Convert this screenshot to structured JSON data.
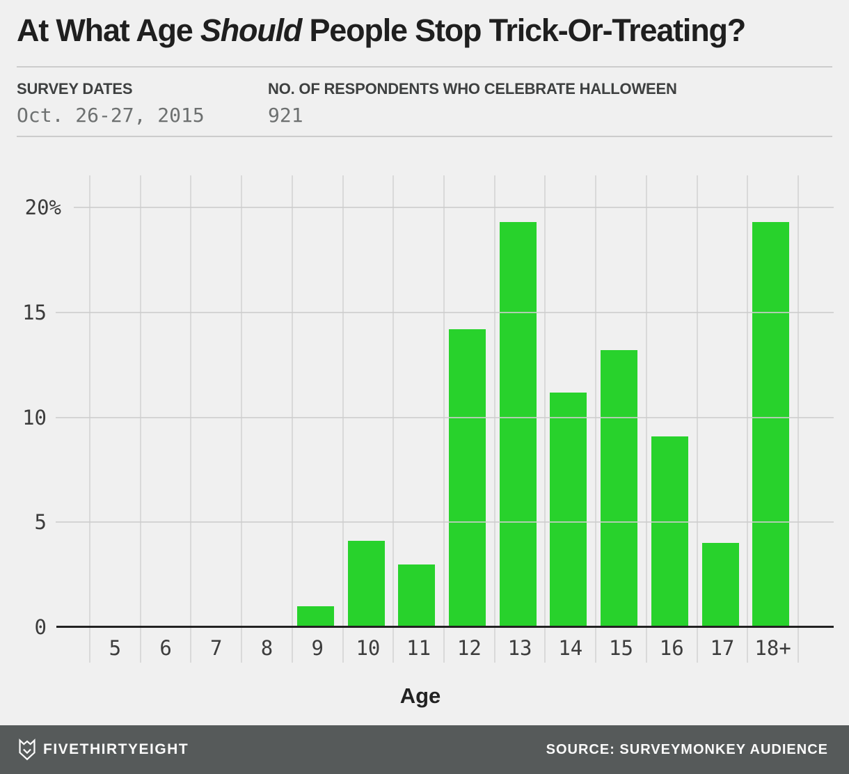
{
  "title": {
    "prefix": "At What Age ",
    "italic": "Should",
    "suffix": " People Stop Trick-Or-Treating?"
  },
  "meta": {
    "survey_dates_label": "SURVEY DATES",
    "survey_dates_value": "Oct. 26-27, 2015",
    "respondents_label": "NO. OF RESPONDENTS WHO CELEBRATE HALLOWEEN",
    "respondents_value": "921"
  },
  "chart_data": {
    "type": "bar",
    "title": "At What Age Should People Stop Trick-Or-Treating?",
    "categories": [
      "5",
      "6",
      "7",
      "8",
      "9",
      "10",
      "11",
      "12",
      "13",
      "14",
      "15",
      "16",
      "17",
      "18+"
    ],
    "values": [
      0,
      0,
      0,
      0,
      1.0,
      4.1,
      3.0,
      14.2,
      19.3,
      11.2,
      13.2,
      9.1,
      4.0,
      19.3
    ],
    "xlabel": "Age",
    "ylabel": "",
    "y_ticks": [
      0,
      5,
      10,
      15,
      20
    ],
    "y_tick_labels": [
      "0",
      "5",
      "10",
      "15",
      "20%"
    ],
    "ylim": [
      0,
      21.5
    ],
    "grid": true,
    "legend": "none",
    "bar_color": "#28d22c"
  },
  "colors": {
    "background": "#f0f0f0",
    "gridline": "#d9d9d9",
    "axis": "#222222",
    "bar_green": "#28d22c",
    "footer_bg": "#565a5a",
    "tick_text": "#3c3c3c",
    "meta_value_text": "#6d7070"
  },
  "footer": {
    "brand": "FIVETHIRTYEIGHT",
    "source": "SOURCE: SURVEYMONKEY AUDIENCE"
  }
}
